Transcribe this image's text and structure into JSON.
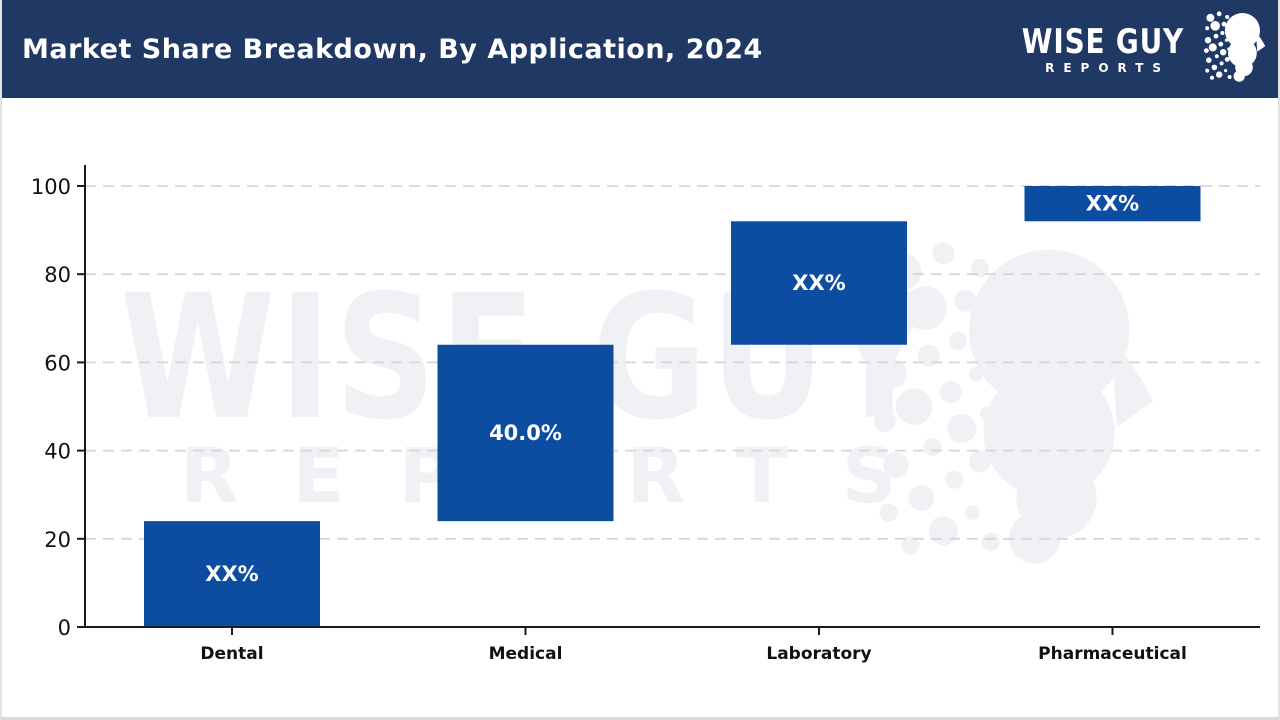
{
  "header": {
    "title": "Market Share Breakdown, By Application, 2024",
    "logo": {
      "line1": "WISE GUY",
      "line2": "REPORTS"
    }
  },
  "watermark": {
    "line1": "WISE GUY",
    "line2": "REPORTS"
  },
  "colors": {
    "header_bg": "#203864",
    "bar": "#0c4da2",
    "bar_label": "#ffffff",
    "grid": "#d6d6d6",
    "axis": "#1a1a1a",
    "tick_label": "#111111",
    "watermark": "#f0f1f4"
  },
  "chart_data": {
    "type": "bar",
    "subtype": "waterfall",
    "title": "Market Share Breakdown, By Application, 2024",
    "categories": [
      "Dental",
      "Medical",
      "Laboratory",
      "Pharmaceutical"
    ],
    "segments": [
      {
        "category": "Dental",
        "start": 0,
        "end": 24,
        "value": 24,
        "label": "XX%"
      },
      {
        "category": "Medical",
        "start": 24,
        "end": 64,
        "value": 40,
        "label": "40.0%"
      },
      {
        "category": "Laboratory",
        "start": 64,
        "end": 92,
        "value": 28,
        "label": "XX%"
      },
      {
        "category": "Pharmaceutical",
        "start": 92,
        "end": 100,
        "value": 8,
        "label": "XX%"
      }
    ],
    "yticks": [
      0,
      20,
      40,
      60,
      80,
      100
    ],
    "ylim": [
      0,
      100
    ],
    "xlabel": "",
    "ylabel": "",
    "grid": "dashed-horizontal",
    "legend": "none"
  }
}
